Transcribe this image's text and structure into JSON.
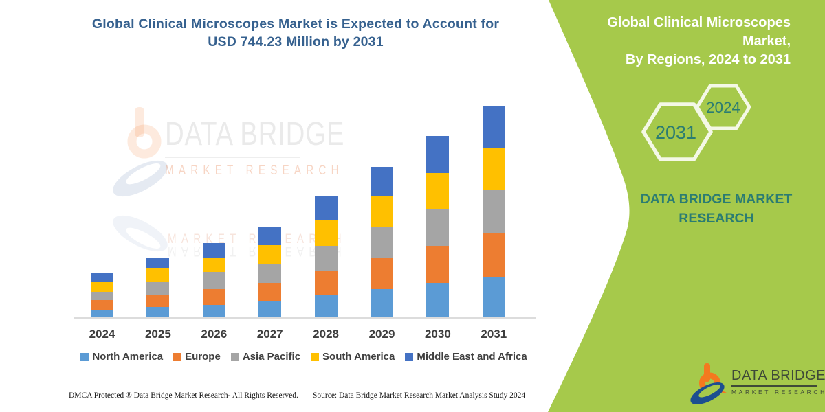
{
  "main_title": {
    "line1": "Global Clinical Microscopes Market is Expected to Account for",
    "line2": "USD 744.23 Million by 2031"
  },
  "chart_data": {
    "type": "bar",
    "stacked": true,
    "unit": "USD Million",
    "title": "Global Clinical Microscopes Market is Expected to Account for USD 744.23 Million by 2031",
    "categories": [
      "2024",
      "2025",
      "2026",
      "2027",
      "2028",
      "2029",
      "2030",
      "2031"
    ],
    "series": [
      {
        "name": "North America",
        "color": "#5B9BD5",
        "values": [
          24.1,
          36.2,
          44.2,
          54.8,
          78.0,
          99.7,
          120.0,
          142.4
        ]
      },
      {
        "name": "Europe",
        "color": "#ED7D31",
        "values": [
          36.2,
          44.2,
          54.8,
          66.9,
          84.5,
          107.0,
          131.1,
          152.8
        ]
      },
      {
        "name": "Asia Pacific",
        "color": "#A5A5A5",
        "values": [
          28.2,
          44.2,
          60.4,
          64.5,
          88.6,
          108.6,
          131.1,
          152.8
        ]
      },
      {
        "name": "South America",
        "color": "#FFC000",
        "values": [
          36.2,
          48.3,
          48.3,
          67.6,
          88.6,
          112.7,
          124.8,
          146.5
        ]
      },
      {
        "name": "Middle East and Africa",
        "color": "#4472C4",
        "values": [
          32.1,
          36.2,
          53.8,
          62.8,
          84.5,
          100.7,
          130.4,
          149.7
        ]
      }
    ],
    "totals_estimated": [
      156.8,
      209.1,
      261.5,
      316.6,
      424.2,
      528.7,
      637.4,
      744.23
    ],
    "legend_position": "bottom",
    "grid": false,
    "y_axis_visible": false,
    "note": "Segment values estimated from bar heights; 2031 total stated as USD 744.23 Million"
  },
  "panel": {
    "background": "#a6c94b",
    "title_line1": "Global Clinical Microscopes Market,",
    "title_line2": "By Regions, 2024 to 2031",
    "hexagon_large_label": "2031",
    "hexagon_small_label": "2024",
    "brand_line1": "DATA BRIDGE MARKET",
    "brand_line2": "RESEARCH",
    "teal": "#2b7c72"
  },
  "watermark": {
    "line1": "DATA BRIDGE",
    "line2": "MARKET RESEARCH"
  },
  "logo": {
    "line1": "DATA BRIDGE",
    "line2": "MARKET RESEARCH"
  },
  "footer": {
    "left": "DMCA Protected ® Data Bridge Market Research-  All Rights Reserved.",
    "source": "Source: Data Bridge Market Research  Market Analysis Study 2024"
  }
}
